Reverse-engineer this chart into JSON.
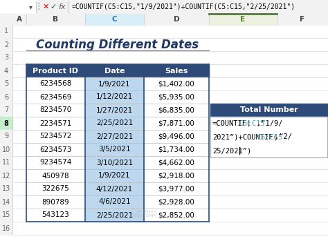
{
  "title": "Counting Different Dates",
  "formula_bar_text": "=COUNTIF(C5:C15,\"1/9/2021\")+COUNTIF(C5:C15,\"2/25/2021\")",
  "col_headers": [
    "Product ID",
    "Date",
    "Sales"
  ],
  "rows": [
    [
      "6234568",
      "1/9/2021",
      "$1,402.00"
    ],
    [
      "6234569",
      "1/12/2021",
      "$5,935.00"
    ],
    [
      "8234570",
      "1/27/2021",
      "$6,835.00"
    ],
    [
      "2234571",
      "2/25/2021",
      "$7,871.00"
    ],
    [
      "5234572",
      "2/27/2021",
      "$9,496.00"
    ],
    [
      "6234573",
      "3/5/2021",
      "$1,734.00"
    ],
    [
      "9234574",
      "3/10/2021",
      "$4,662.00"
    ],
    [
      "450978",
      "1/9/2021",
      "$2,918.00"
    ],
    [
      "322675",
      "4/12/2021",
      "$3,977.00"
    ],
    [
      "890789",
      "4/6/2021",
      "$2,928.00"
    ],
    [
      "543123",
      "2/25/2021",
      "$2,852.00"
    ]
  ],
  "date_highlight_color": "#BDD7EE",
  "header_bg_color": "#2E4A78",
  "header_text_color": "#FFFFFF",
  "table_border_color": "#2E4A78",
  "title_color": "#1F3864",
  "tooltip_bg": "#2E4A78",
  "tooltip_text_color": "#FFFFFF",
  "tooltip_title": "Total Number",
  "formula_ref_color": "#4BACC6",
  "formula_black_color": "#000000",
  "col_labels": [
    "A",
    "B",
    "C",
    "D",
    "E",
    "F"
  ],
  "col_label_colors": {
    "A": "#444444",
    "B": "#444444",
    "C": "#2E75B6",
    "D": "#444444",
    "E": "#507E32",
    "F": "#444444"
  },
  "col_header_bg": {
    "C": "#DAEEF8",
    "E": "#EBF1DE"
  },
  "selected_row": 8,
  "watermark": "exceldemy\nEXCEL · DATA · BI"
}
